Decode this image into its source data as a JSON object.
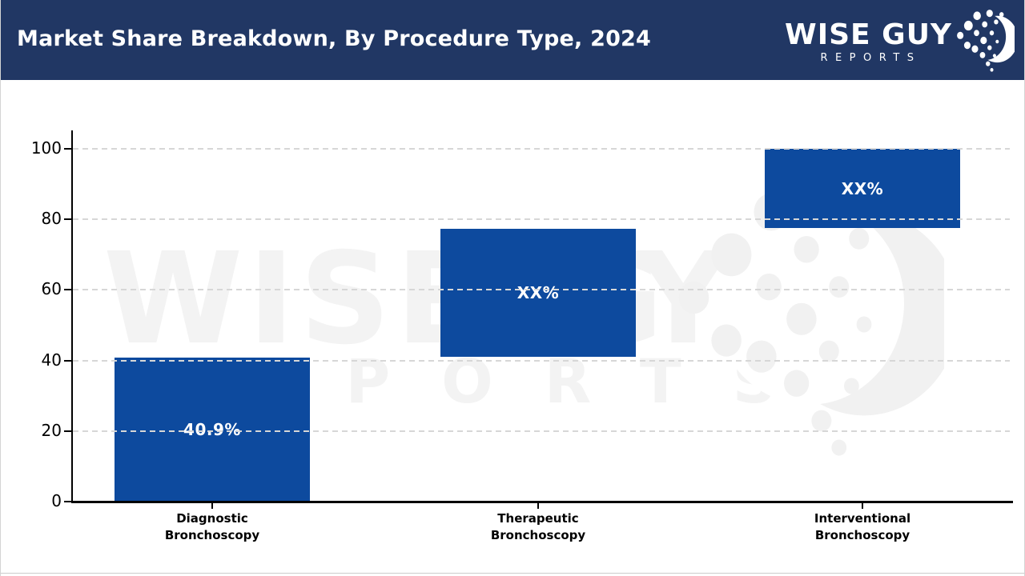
{
  "header": {
    "title": "Market Share Breakdown, By Procedure Type, 2024",
    "bg_color": "#213764",
    "logo": {
      "wordmark": "WISE GUY",
      "subtext": "REPORTS"
    }
  },
  "watermark": {
    "line1": "WISE G",
    "line1_tail": "Y",
    "line2": "REPORTS"
  },
  "chart_data": {
    "type": "bar",
    "subtype": "waterfall-stacked-percentage",
    "title": "Market Share Breakdown, By Procedure Type, 2024",
    "categories": [
      "Diagnostic Bronchoscopy",
      "Therapeutic Bronchoscopy",
      "Interventional Bronchoscopy"
    ],
    "bars": [
      {
        "label_line1": "Diagnostic",
        "label_line2": "Bronchoscopy",
        "start": 0,
        "end": 40.9,
        "value_label": "40.9%"
      },
      {
        "label_line1": "Therapeutic",
        "label_line2": "Bronchoscopy",
        "start": 41.0,
        "end": 77.3,
        "value_label": "XX%"
      },
      {
        "label_line1": "Interventional",
        "label_line2": "Bronchoscopy",
        "start": 77.5,
        "end": 100.0,
        "value_label": "XX%"
      }
    ],
    "ylim": [
      0,
      100
    ],
    "yticks": [
      0,
      20,
      40,
      60,
      80,
      100
    ],
    "xlabel": "",
    "ylabel": "",
    "legend": "none",
    "grid": {
      "axis": "y",
      "style": "dashed",
      "color": "#d7d7d7"
    },
    "bar_color": "#0d4a9e",
    "bar_label_color": "#ffffff"
  }
}
